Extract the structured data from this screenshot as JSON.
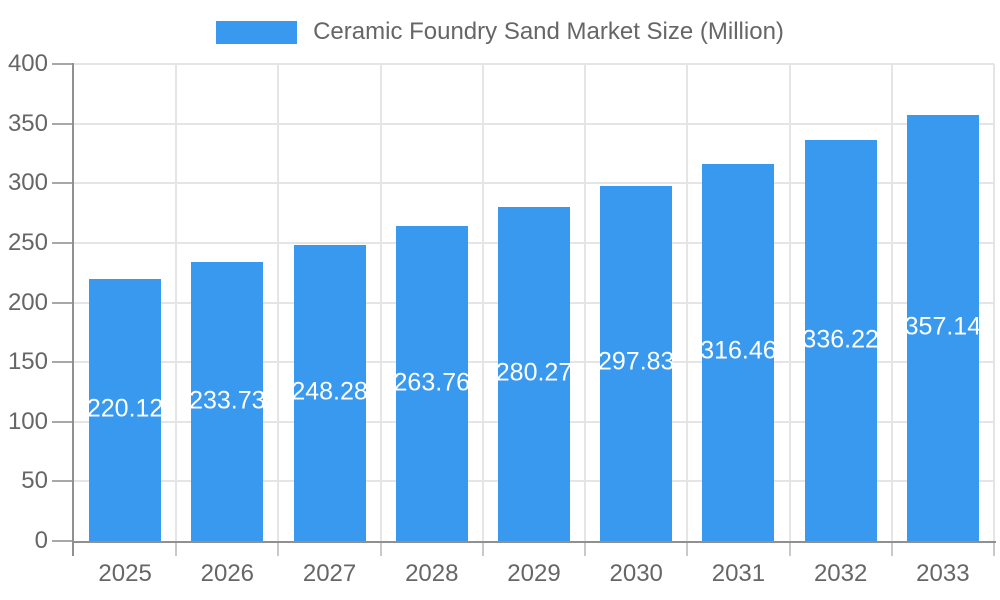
{
  "chart_data": {
    "type": "bar",
    "title": "Ceramic Foundry Sand Market Size (Million)",
    "categories": [
      "2025",
      "2026",
      "2027",
      "2028",
      "2029",
      "2030",
      "2031",
      "2032",
      "2033"
    ],
    "values": [
      220.12,
      233.73,
      248.28,
      263.76,
      280.27,
      297.83,
      316.46,
      336.22,
      357.14
    ],
    "bar_labels": [
      "220.12",
      "233.73",
      "248.28",
      "263.76",
      "280.27",
      "297.83",
      "316.46",
      "336.22",
      "357.14"
    ],
    "yticks": [
      "0",
      "50",
      "100",
      "150",
      "200",
      "250",
      "300",
      "350",
      "400"
    ],
    "ylim": [
      0,
      400
    ],
    "ytick_step": 50,
    "xlabel": "",
    "ylabel": "",
    "grid": true,
    "legend_position": "top",
    "colors": {
      "bar": "#3999EE",
      "grid_line": "#e5e5e5",
      "axis_line": "#909090",
      "y_tick_mark": "#a8a8a8",
      "x_tick_mark": "#c9c9c9",
      "tick_label": "#666666",
      "data_label": "#ffffff",
      "background": "#ffffff"
    }
  }
}
